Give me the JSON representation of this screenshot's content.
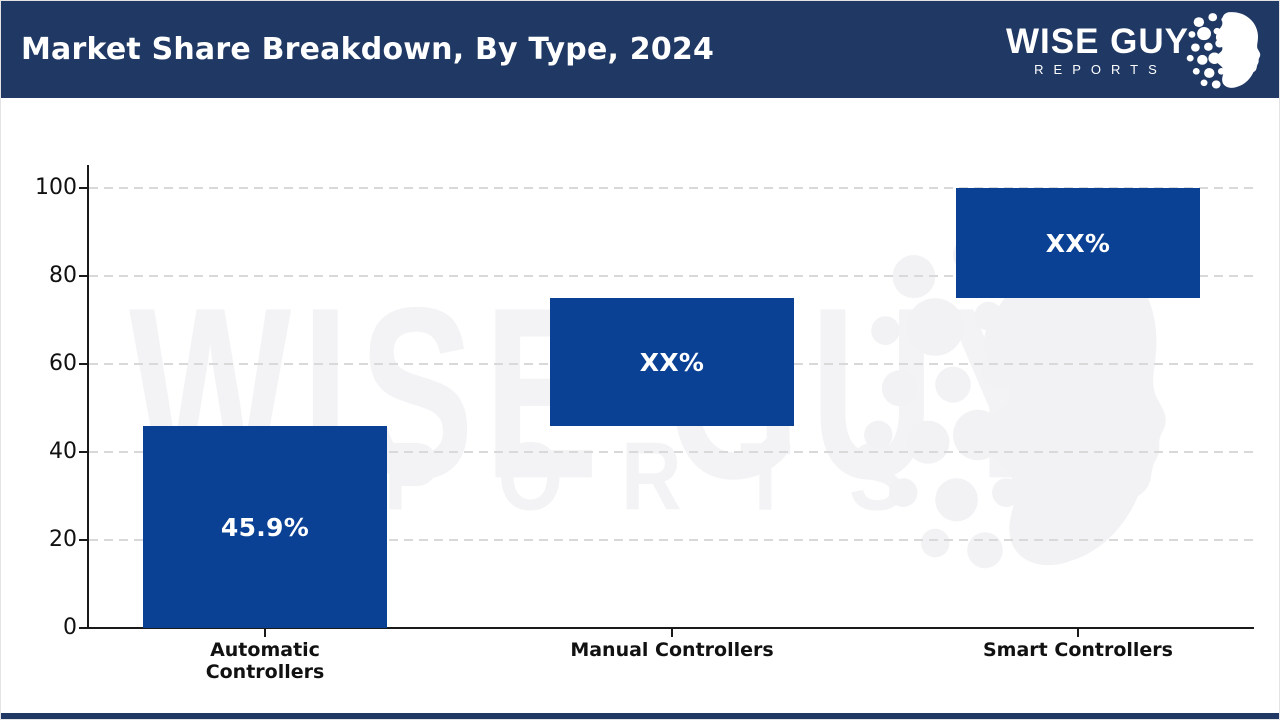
{
  "header": {
    "title": "Market Share Breakdown, By Type, 2024",
    "bg_color": "#1f3864"
  },
  "logo": {
    "line1": "WISE GUY",
    "line2": "REPORTS",
    "head_icon": "dotted-face-profile"
  },
  "watermark": {
    "line1": "WISE GUY",
    "line2": "REPORTS",
    "head_icon": "dotted-face-profile"
  },
  "footer": {
    "bg_color": "#1f3864"
  },
  "chart_data": {
    "type": "bar",
    "subtype": "floating-waterfall",
    "title": "Market Share Breakdown, By Type, 2024",
    "categories": [
      "Automatic\nControllers",
      "Manual Controllers",
      "Smart Controllers"
    ],
    "bars": [
      {
        "category": "Automatic Controllers",
        "start": 0,
        "end": 45.9,
        "label": "45.9%"
      },
      {
        "category": "Manual Controllers",
        "start": 45.9,
        "end": 75,
        "label": "XX%"
      },
      {
        "category": "Smart Controllers",
        "start": 75,
        "end": 100,
        "label": "XX%"
      }
    ],
    "yticks": [
      0,
      20,
      40,
      60,
      80,
      100
    ],
    "ylim": [
      0,
      105
    ],
    "xlabel": "",
    "ylabel": "",
    "grid": "horizontal-dashed",
    "legend": false,
    "bar_color": "#0a4195",
    "grid_color": "#d9d9d9",
    "axis_color": "#1a1a1a",
    "value_label_color": "#ffffff"
  }
}
